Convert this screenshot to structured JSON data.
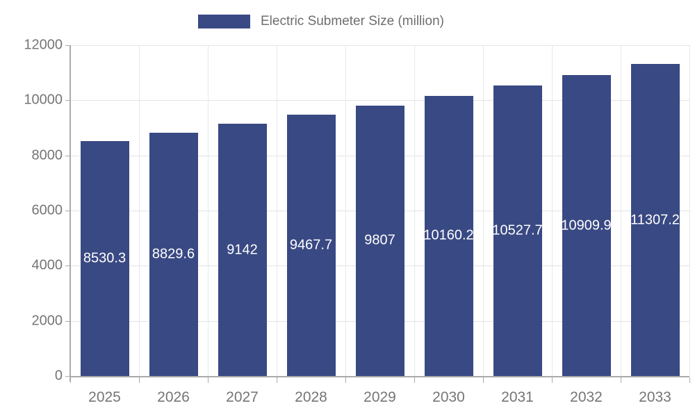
{
  "legend": {
    "label": "Electric Submeter Size (million)"
  },
  "chart_data": {
    "type": "bar",
    "title": "Electric Submeter Size (million)",
    "series_name": "Electric Submeter Size (million)",
    "categories": [
      "2025",
      "2026",
      "2027",
      "2028",
      "2029",
      "2030",
      "2031",
      "2032",
      "2033"
    ],
    "values": [
      8530.3,
      8829.6,
      9142,
      9467.7,
      9807,
      10160.2,
      10527.7,
      10909.9,
      11307.2
    ],
    "value_labels": [
      "8530.3",
      "8829.6",
      "9142",
      "9467.7",
      "9807",
      "10160.2",
      "10527.7",
      "10909.9",
      "11307.2"
    ],
    "xlabel": "",
    "ylabel": "",
    "ylim": [
      0,
      12000
    ],
    "yticks": [
      0,
      2000,
      4000,
      6000,
      8000,
      10000,
      12000
    ],
    "grid": true,
    "legend_position": "top-center",
    "value_label_position": "inside-center",
    "colors": {
      "bar": "#394983",
      "grid_line": "#e3e3e3",
      "split_line": "#e8e8e8",
      "axis_line": "#aaaaaa",
      "tick_label": "#757575",
      "value_label": "#ffffff",
      "legend_text": "#6e6e6e"
    }
  }
}
